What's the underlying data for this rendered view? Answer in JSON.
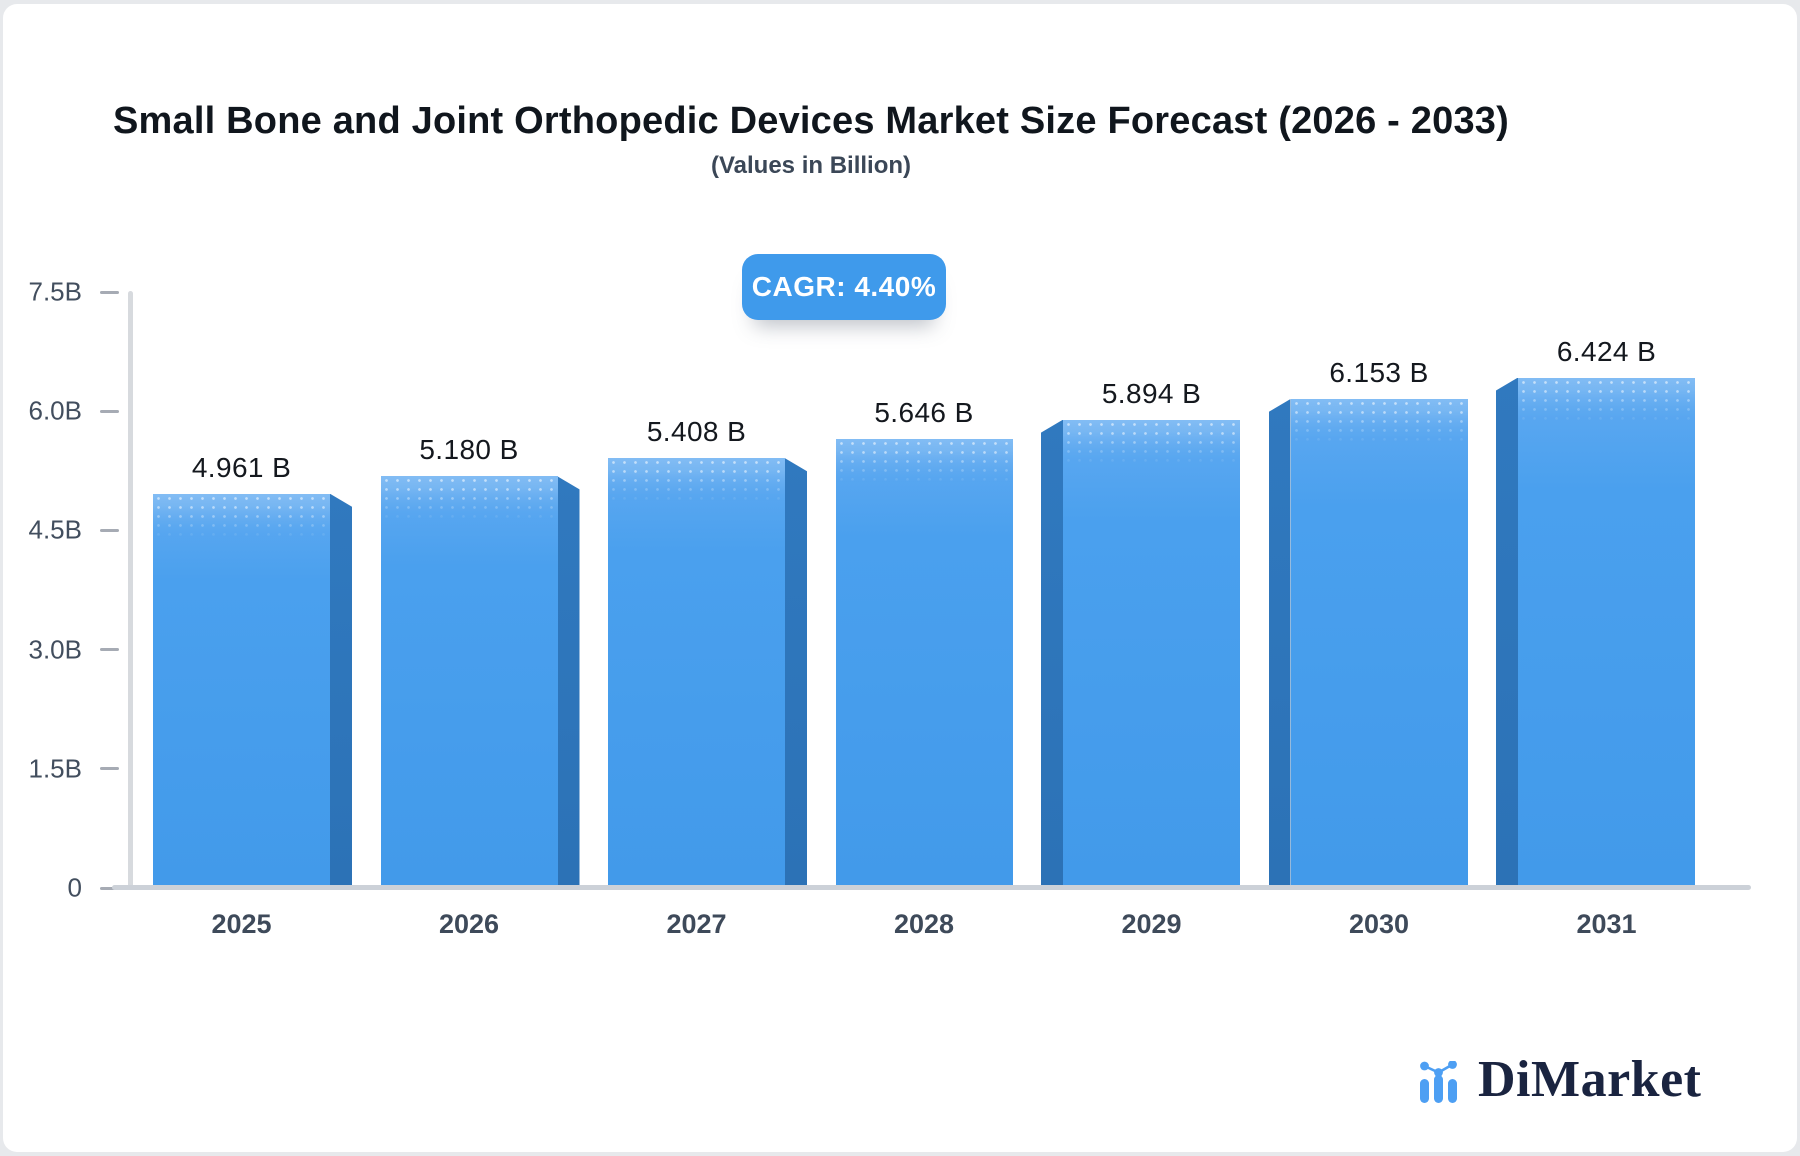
{
  "header": {
    "title": "Small Bone and Joint Orthopedic Devices Market Size Forecast (2026 - 2033)",
    "subtitle": "(Values in Billion)",
    "cagr_label": "CAGR: 4.40%"
  },
  "chart_data": {
    "type": "bar",
    "title": "Small Bone and Joint Orthopedic Devices Market Size Forecast (2026 - 2033)",
    "subtitle": "(Values in Billion)",
    "annotation": "CAGR: 4.40%",
    "categories": [
      "2025",
      "2026",
      "2027",
      "2028",
      "2029",
      "2030",
      "2031"
    ],
    "values": [
      4.961,
      5.18,
      5.408,
      5.646,
      5.894,
      6.153,
      6.424
    ],
    "value_labels": [
      "4.961 B",
      "5.180 B",
      "5.408 B",
      "5.646 B",
      "5.894 B",
      "6.153 B",
      "6.424 B"
    ],
    "ylim": [
      0,
      7.5
    ],
    "yticks": [
      {
        "value": 0,
        "label": "0"
      },
      {
        "value": 1.5,
        "label": "1.5B"
      },
      {
        "value": 3.0,
        "label": "3.0B"
      },
      {
        "value": 4.5,
        "label": "4.5B"
      },
      {
        "value": 6.0,
        "label": "6.0B"
      },
      {
        "value": 7.5,
        "label": "7.5B"
      }
    ],
    "grid": false,
    "legend": false,
    "bar_face_color": "#459ceb",
    "bar_side_color": "#2d74b8",
    "badge_color": "#3f9aeb",
    "style": "3d-extruded, side panel faces right for bars left of center and left for bars right of center"
  },
  "footer": {
    "brand": "DiMarket",
    "logo_icon": "mini-bar-chart-icon",
    "logo_color": "#4d9ff3",
    "brand_color": "#1a2440"
  }
}
